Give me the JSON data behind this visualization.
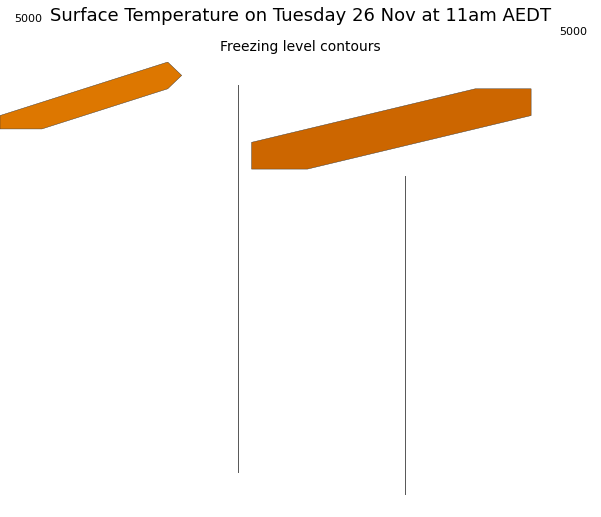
{
  "title": "Surface Temperature on Tuesday 26 Nov at 11am AEDT",
  "subtitle": "Freezing level contours",
  "title_fontsize": 13,
  "subtitle_fontsize": 10,
  "background_color": "#ffffff",
  "ocean_color": "#b8cfe8",
  "land_color_warm": "#cc2200",
  "land_color_mid": "#e87020",
  "land_color_cool": "#f0c060",
  "contour_color": "#cc0000",
  "contour_linewidth": 1.5,
  "contour_label_fontsize": 8,
  "fig_width": 6.01,
  "fig_height": 5.17,
  "dpi": 100
}
